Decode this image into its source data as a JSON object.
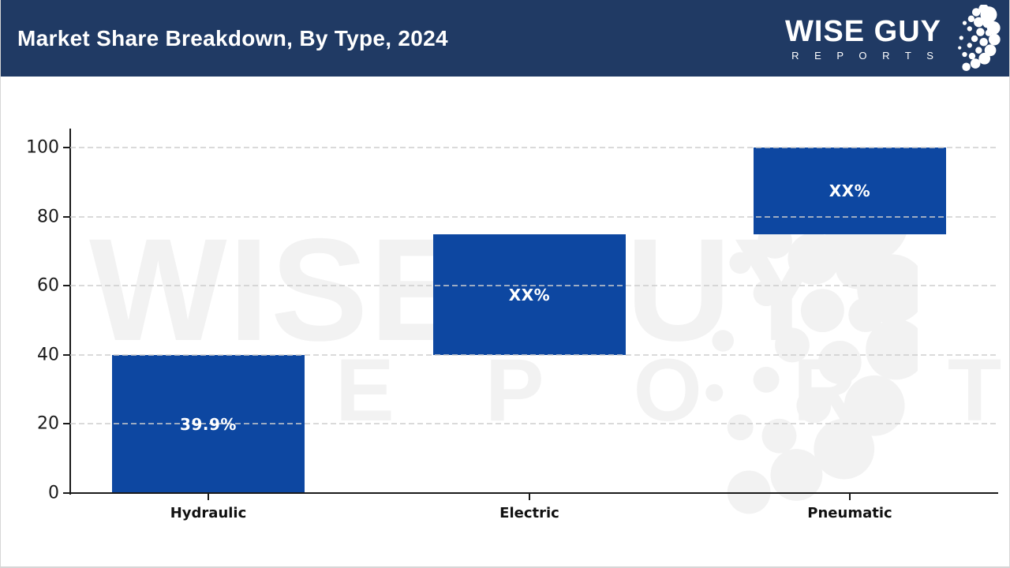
{
  "header": {
    "title": "Market Share Breakdown, By Type, 2024",
    "logo": {
      "line1": "WISE GUY",
      "line2": "R E P O R T S"
    }
  },
  "watermark": {
    "line1": "WISE GUY",
    "line2": "R E P O R T S"
  },
  "chart_data": {
    "type": "bar",
    "subtype": "waterfall-stacked-segments",
    "title": "Market Share Breakdown, By Type, 2024",
    "categories": [
      "Hydraulic",
      "Electric",
      "Pneumatic"
    ],
    "segments": [
      {
        "category": "Hydraulic",
        "start": 0,
        "end": 39.9,
        "label": "39.9%"
      },
      {
        "category": "Electric",
        "start": 39.9,
        "end": 74.9,
        "label": "XX%"
      },
      {
        "category": "Pneumatic",
        "start": 74.9,
        "end": 100,
        "label": "XX%"
      }
    ],
    "y_ticks": [
      "0",
      "20",
      "40",
      "60",
      "80",
      "100"
    ],
    "y_tick_values": [
      0,
      20,
      40,
      60,
      80,
      100
    ],
    "ylim": [
      0,
      105
    ],
    "xlabel": "",
    "ylabel": "",
    "grid": "horizontal-dashed",
    "legend": "none"
  },
  "colors": {
    "header_bg": "#203a64",
    "bar": "#0d47a1",
    "axis": "#1a1a1a",
    "grid": "#d8d8d8",
    "watermark": "#f2f2f2",
    "title_text": "#ffffff",
    "bar_label_text": "#ffffff"
  }
}
